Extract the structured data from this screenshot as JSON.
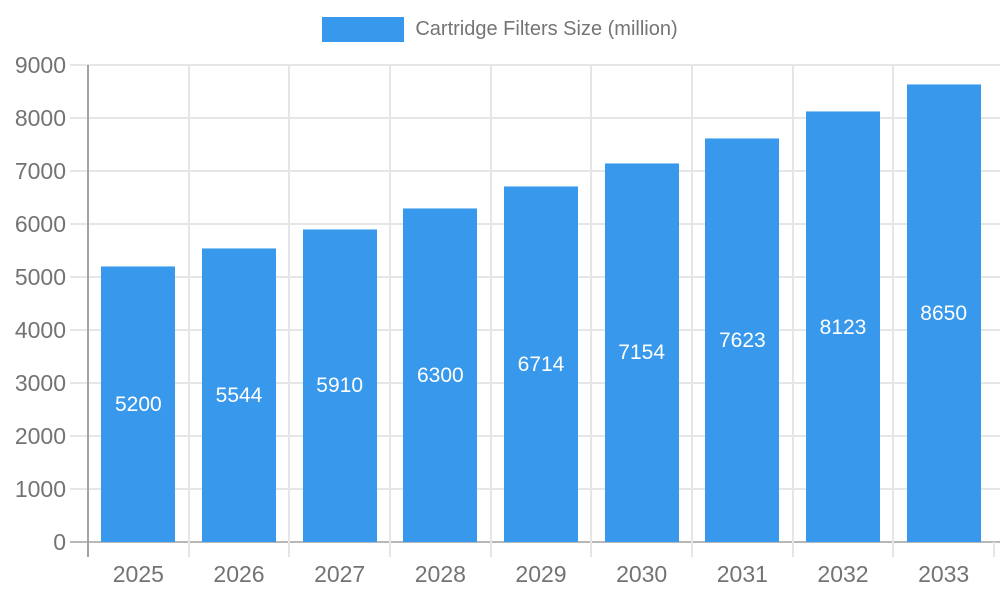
{
  "legend": {
    "label": "Cartridge Filters Size (million)"
  },
  "chart_data": {
    "type": "bar",
    "title": "Cartridge Filters Size (million)",
    "legend_entries": [
      "Cartridge Filters Size (million)"
    ],
    "legend_position": "top-center",
    "categories": [
      "2025",
      "2026",
      "2027",
      "2028",
      "2029",
      "2030",
      "2031",
      "2032",
      "2033"
    ],
    "series": [
      {
        "name": "Cartridge Filters Size (million)",
        "values": [
          5200,
          5544,
          5910,
          6300,
          6714,
          7154,
          7623,
          8123,
          8650
        ]
      }
    ],
    "value_labels_shown": true,
    "xlabel": "",
    "ylabel": "",
    "ylim": [
      0,
      9000
    ],
    "ytick_step": 1000,
    "yticks": [
      0,
      1000,
      2000,
      3000,
      4000,
      5000,
      6000,
      7000,
      8000,
      9000
    ],
    "grid": "horizontal and vertical category boundaries"
  },
  "colors": {
    "bar": "#3899EC",
    "bar_value_text": "#FFFFFF",
    "axis_text": "#737373",
    "legend_text": "#757575",
    "gridline": "#E6E6E6",
    "axis_line": "#A3A3A3",
    "zero_line": "#B8B8B8",
    "background": "#FFFFFF"
  }
}
